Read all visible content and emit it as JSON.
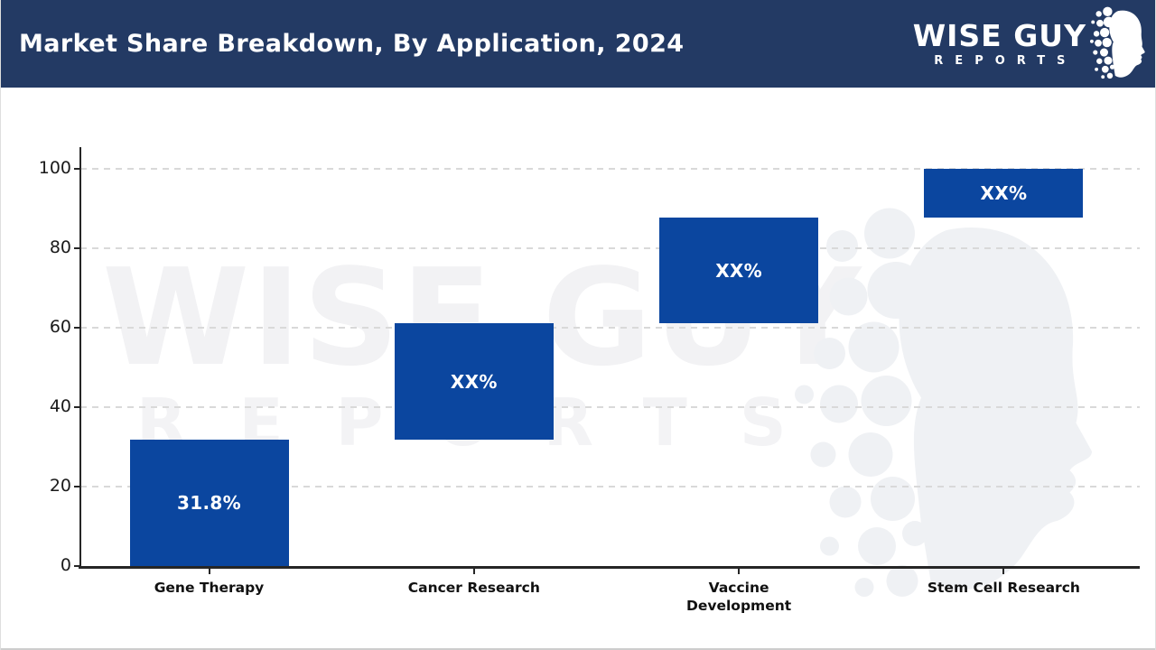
{
  "header": {
    "title": "Market Share Breakdown, By Application, 2024",
    "bg_color": "#233a64",
    "logo": {
      "brand_line1": "WISE GUY",
      "brand_line2": "REPORTS"
    }
  },
  "watermark": {
    "line1": "WISE GUY",
    "line2": "REPORTS"
  },
  "chart_data": {
    "type": "bar",
    "subtype": "waterfall-style floating cumulative segments",
    "title": "Market Share Breakdown, By Application, 2024",
    "categories": [
      "Gene Therapy",
      "Cancer Research",
      "Vaccine Development",
      "Stem Cell Research"
    ],
    "xtick_labels": [
      "Gene Therapy",
      "Cancer Research",
      "Vaccine\nDevelopment",
      "Stem Cell Research"
    ],
    "segments": [
      {
        "category": "Gene Therapy",
        "start": 0,
        "end": 31.8,
        "label": "31.8%"
      },
      {
        "category": "Cancer Research",
        "start": 31.8,
        "end": 61.1,
        "label": "XX%"
      },
      {
        "category": "Vaccine Development",
        "start": 61.1,
        "end": 87.7,
        "label": "XX%"
      },
      {
        "category": "Stem Cell Research",
        "start": 87.7,
        "end": 100,
        "label": "XX%"
      }
    ],
    "bar_labels": [
      "31.8%",
      "XX%",
      "XX%",
      "XX%"
    ],
    "yticks": [
      0,
      20,
      40,
      60,
      80,
      100
    ],
    "ylim": [
      0,
      100
    ],
    "xlabel": "",
    "ylabel": "",
    "grid": "horizontal dashed",
    "legend": "none",
    "bar_color": "#0b469f",
    "value_label_color": "#ffffff",
    "axis_color": "#262626",
    "gridline_color": "#d9d9d9"
  }
}
